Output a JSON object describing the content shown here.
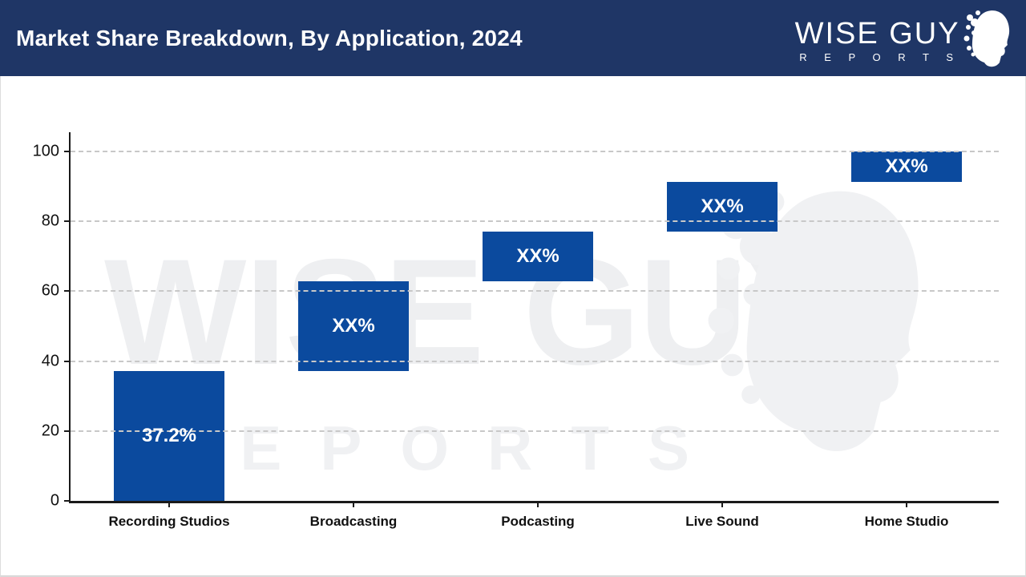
{
  "header": {
    "title": "Market Share Breakdown, By Application, 2024",
    "logo": {
      "line1": "WISE GUY",
      "line2": "R E P O R T S"
    }
  },
  "watermark": {
    "line1": "WISE GUY",
    "line2": "REPORTS"
  },
  "colors": {
    "header_bg": "#1f3666",
    "bar": "#0b4a9e",
    "grid": "#c8c8c8",
    "axis": "#1a1a1a",
    "bar_label": "#ffffff",
    "watermark": "#f0f1f3"
  },
  "chart_data": {
    "type": "bar",
    "subtype": "waterfall",
    "title": "Market Share Breakdown, By Application, 2024",
    "categories": [
      "Recording Studios",
      "Broadcasting",
      "Podcasting",
      "Live Sound",
      "Home Studio"
    ],
    "segments": [
      {
        "category": "Recording Studios",
        "start": 0,
        "end": 37.2,
        "label": "37.2%"
      },
      {
        "category": "Broadcasting",
        "start": 37.2,
        "end": 62.9,
        "label": "XX%"
      },
      {
        "category": "Podcasting",
        "start": 62.9,
        "end": 77.0,
        "label": "XX%"
      },
      {
        "category": "Live Sound",
        "start": 77.0,
        "end": 91.2,
        "label": "XX%"
      },
      {
        "category": "Home Studio",
        "start": 91.2,
        "end": 100,
        "label": "XX%"
      }
    ],
    "ylim": [
      0,
      100
    ],
    "yticks": [
      0,
      20,
      40,
      60,
      80,
      100
    ],
    "xlabel": "",
    "ylabel": "",
    "grid": "horizontal dashed, drawn above bars",
    "legend": "none",
    "bar_color": "#0b4a9e"
  }
}
